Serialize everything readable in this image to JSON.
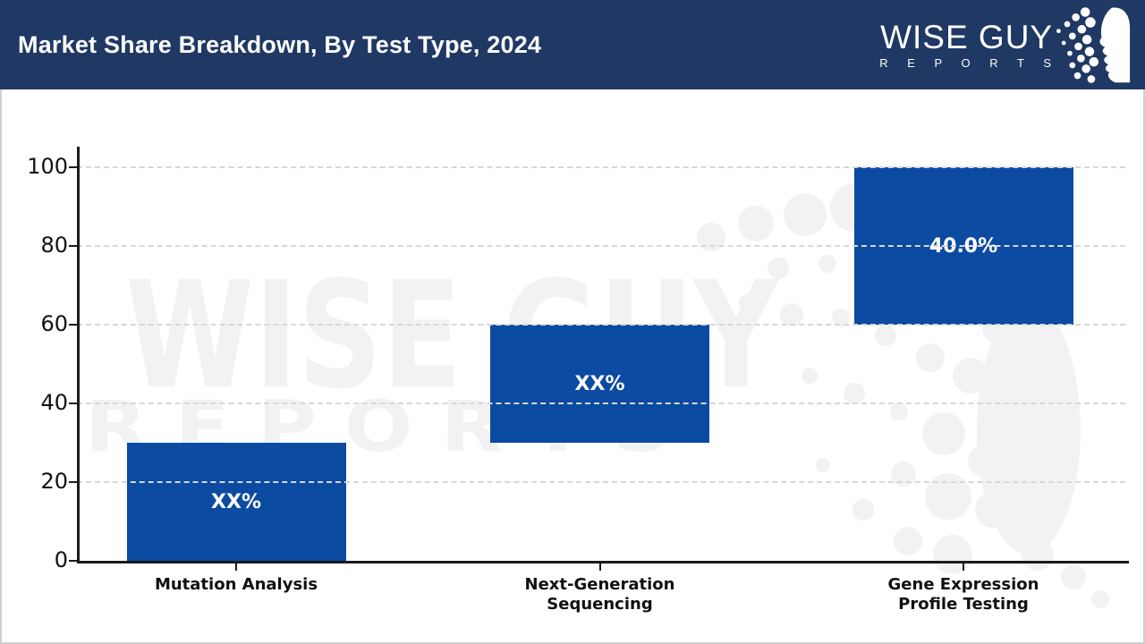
{
  "header": {
    "title": "Market Share Breakdown, By Test Type, 2024",
    "logo": {
      "line1": "WISE GUY",
      "line2": "R E P O R T S"
    }
  },
  "watermark": {
    "line1": "WISE GUY",
    "line2": "R E P O R T S"
  },
  "colors": {
    "header_bg": "#1f3864",
    "bar": "#0b4ba1",
    "grid": "#d8d8d8",
    "axis": "#1a1a1a",
    "watermark": "#f2f2f2",
    "frame_border": "#cfcfcf",
    "bar_label": "#ffffff",
    "title_text": "#ffffff"
  },
  "chart_data": {
    "type": "bar",
    "variant": "floating-waterfall",
    "title": "Market Share Breakdown, By Test Type, 2024",
    "categories": [
      "Mutation Analysis",
      "Next-Generation Sequencing",
      "Gene Expression Profile Testing"
    ],
    "categories_lines": [
      [
        "Mutation Analysis"
      ],
      [
        "Next-Generation",
        "Sequencing"
      ],
      [
        "Gene Expression",
        "Profile Testing"
      ]
    ],
    "bars": [
      {
        "category": "Mutation Analysis",
        "start": 0,
        "end": 30,
        "label": "XX%"
      },
      {
        "category": "Next-Generation Sequencing",
        "start": 30,
        "end": 60,
        "label": "XX%"
      },
      {
        "category": "Gene Expression Profile Testing",
        "start": 60,
        "end": 100,
        "label": "40.0%"
      }
    ],
    "xlabel": "",
    "ylabel": "",
    "ylim": [
      0,
      100
    ],
    "yticks": [
      0,
      20,
      40,
      60,
      80,
      100
    ],
    "grid": "horizontal-dashed",
    "legend": "none"
  }
}
